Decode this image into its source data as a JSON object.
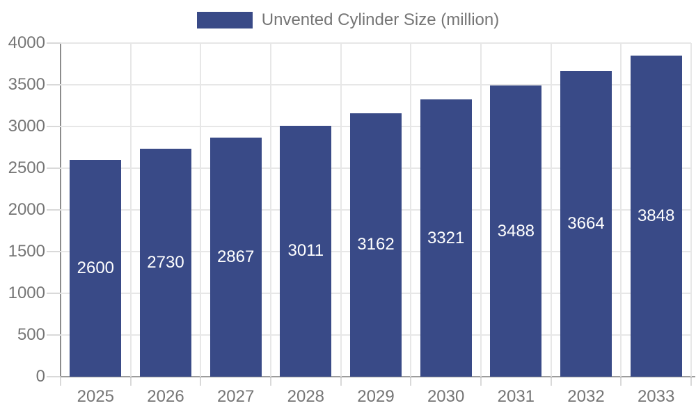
{
  "colors": {
    "background": "#ffffff",
    "bar": "#394a87",
    "axis_text": "#757575",
    "value_label": "#ffffff",
    "gridline": "#e7e7e7",
    "tick": "#d9d9d9",
    "x_axis_line": "#9c9c9c",
    "y_axis_line": "#8c8c8c"
  },
  "chart_data": {
    "type": "bar",
    "title": "",
    "legend": "Unvented Cylinder Size (million)",
    "legend_position": "top",
    "categories": [
      "2025",
      "2026",
      "2027",
      "2028",
      "2029",
      "2030",
      "2031",
      "2032",
      "2033"
    ],
    "values": [
      2600,
      2730,
      2867,
      3011,
      3162,
      3321,
      3488,
      3664,
      3848
    ],
    "xlabel": "",
    "ylabel": "",
    "ylim": [
      0,
      4000
    ],
    "yticks": [
      0,
      500,
      1000,
      1500,
      2000,
      2500,
      3000,
      3500,
      4000
    ],
    "grid": true,
    "value_labels": "inside-center"
  }
}
